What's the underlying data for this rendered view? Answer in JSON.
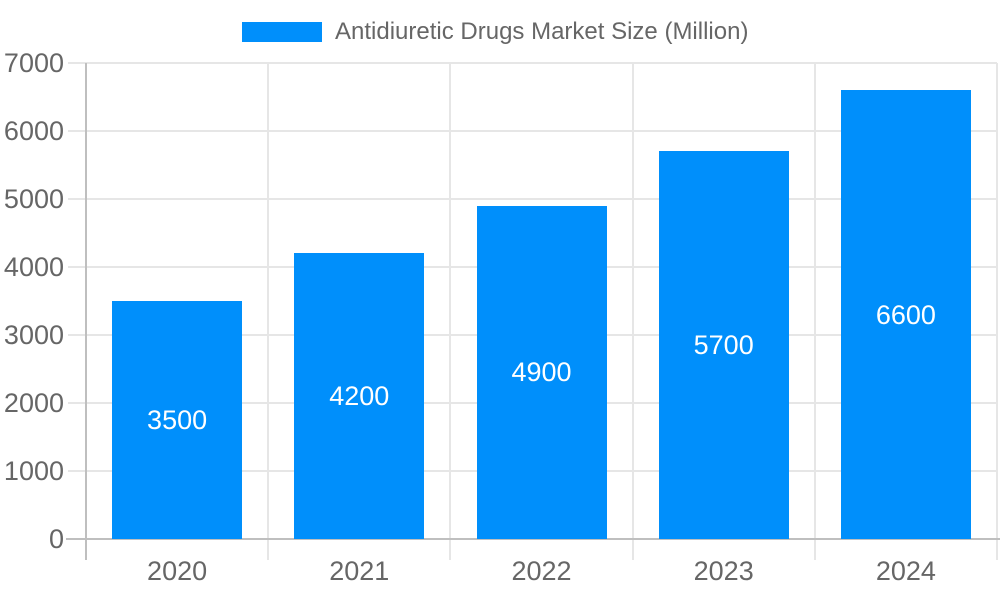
{
  "chart_data": {
    "type": "bar",
    "title": "Antidiuretic Drugs Market Size (Million)",
    "legend_position": "top",
    "legend": [
      {
        "label": "Antidiuretic Drugs Market Size (Million)",
        "color": "#008FFB"
      }
    ],
    "categories": [
      "2020",
      "2021",
      "2022",
      "2023",
      "2024"
    ],
    "series": [
      {
        "name": "Antidiuretic Drugs Market Size (Million)",
        "values": [
          3500,
          4200,
          4900,
          5700,
          6600
        ]
      }
    ],
    "value_labels": [
      "3500",
      "4200",
      "4900",
      "5700",
      "6600"
    ],
    "xlabel": "",
    "ylabel": "",
    "ylim": [
      0,
      7000
    ],
    "yticks": [
      0,
      1000,
      2000,
      3000,
      4000,
      5000,
      6000,
      7000
    ],
    "ytick_labels": [
      "0",
      "1000",
      "2000",
      "3000",
      "4000",
      "5000",
      "6000",
      "7000"
    ],
    "grid": "horizontal-and-vertical",
    "colors": {
      "bar": "#008FFB",
      "value_label": "#ffffff",
      "axis_label": "#666666",
      "title": "#666666",
      "gridline": "#e6e6e6",
      "axis_line": "#bfbfbf",
      "background": "#ffffff"
    }
  }
}
